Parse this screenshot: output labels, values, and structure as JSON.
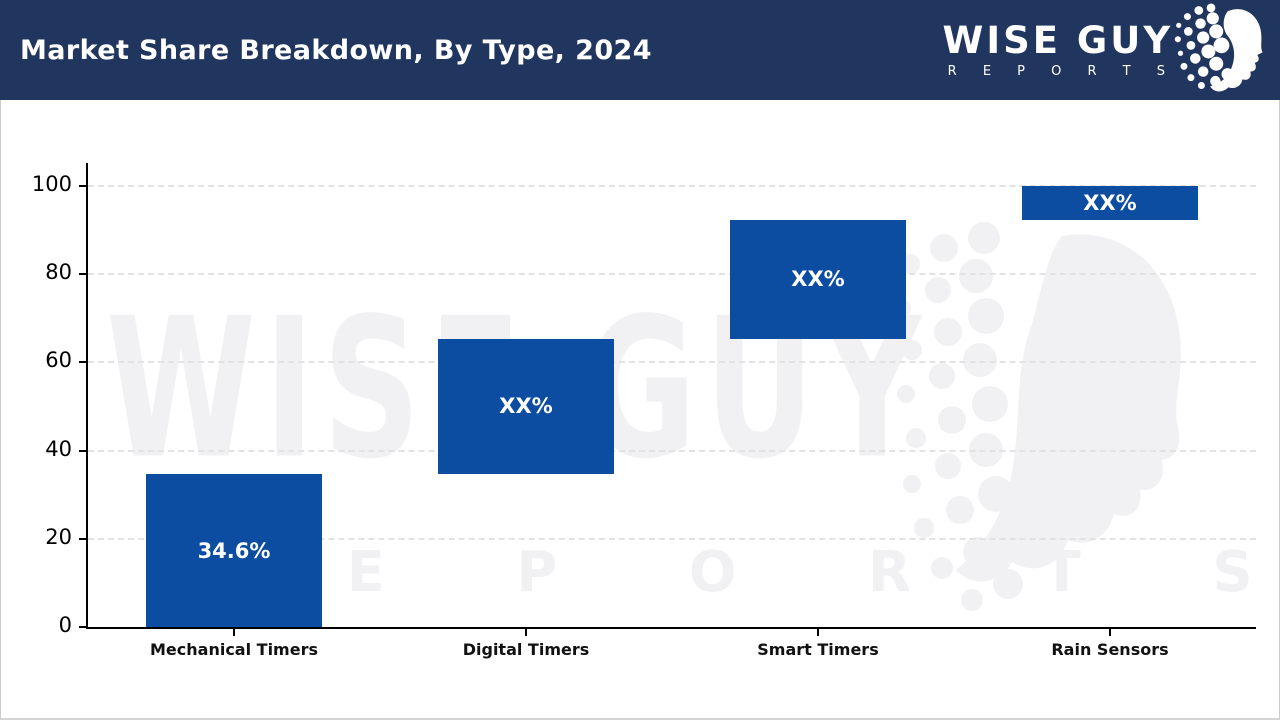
{
  "header": {
    "title": "Market Share Breakdown, By Type, 2024",
    "logo": {
      "brand_top": "WISE GUY",
      "brand_bottom": "R E P O R T S"
    }
  },
  "watermark": {
    "brand_top": "WISE GUY",
    "brand_bottom": "R E P O R T S"
  },
  "chart_data": {
    "type": "bar",
    "subtype": "floating-waterfall",
    "title": "Market Share Breakdown, By Type, 2024",
    "categories": [
      "Mechanical Timers",
      "Digital Timers",
      "Smart Timers",
      "Rain Sensors"
    ],
    "segments": [
      {
        "category": "Mechanical Timers",
        "start": 0,
        "end": 34.6,
        "label": "34.6%"
      },
      {
        "category": "Digital Timers",
        "start": 34.6,
        "end": 65.4,
        "label": "XX%"
      },
      {
        "category": "Smart Timers",
        "start": 65.4,
        "end": 92.4,
        "label": "XX%"
      },
      {
        "category": "Rain Sensors",
        "start": 92.4,
        "end": 100,
        "label": "XX%"
      }
    ],
    "yticks": [
      0,
      20,
      40,
      60,
      80,
      100
    ],
    "ylim": [
      0,
      105
    ],
    "xlabel": "",
    "ylabel": "",
    "grid": "horizontal-dashed",
    "legend": "none",
    "colors": {
      "bar": "#0c4da2",
      "bar_label": "#ffffff",
      "axis": "#000000",
      "gridline": "#e2e2e2",
      "header_bg": "#21365f",
      "watermark": "#f1f1f4"
    }
  }
}
